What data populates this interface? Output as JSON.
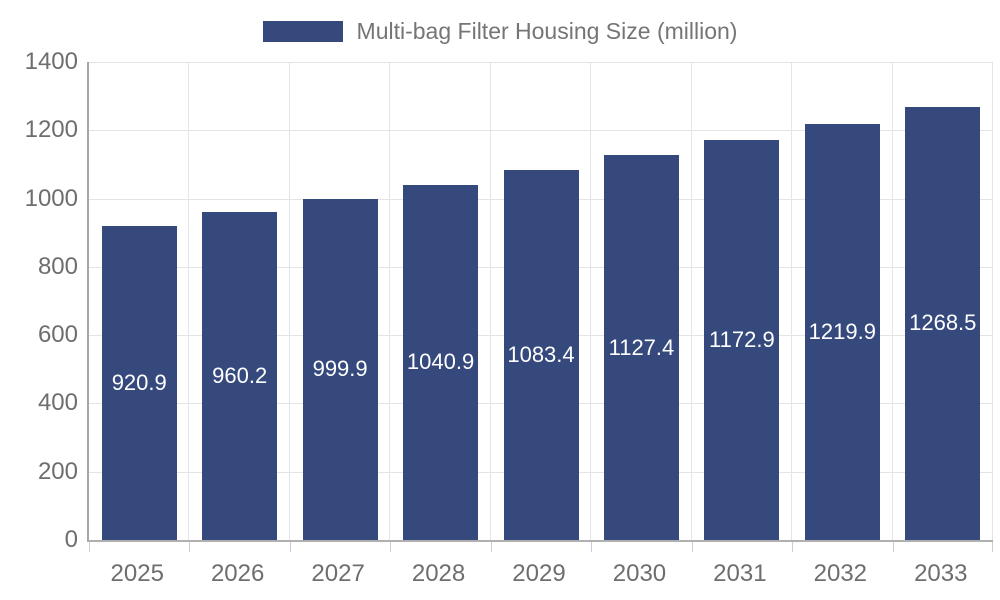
{
  "legend": {
    "label": "Multi-bag Filter Housing Size (million)"
  },
  "chart_data": {
    "type": "bar",
    "title": "Multi-bag Filter Housing Size (million)",
    "categories": [
      "2025",
      "2026",
      "2027",
      "2028",
      "2029",
      "2030",
      "2031",
      "2032",
      "2033"
    ],
    "values": [
      920.9,
      960.2,
      999.9,
      1040.9,
      1083.4,
      1127.4,
      1172.9,
      1219.9,
      1268.5
    ],
    "series": [
      {
        "name": "Multi-bag Filter Housing Size (million)",
        "values": [
          920.9,
          960.2,
          999.9,
          1040.9,
          1083.4,
          1127.4,
          1172.9,
          1219.9,
          1268.5
        ]
      }
    ],
    "xlabel": "",
    "ylabel": "",
    "ylim": [
      0,
      1400
    ],
    "yticks": [
      0,
      200,
      400,
      600,
      800,
      1000,
      1200,
      1400
    ],
    "grid": true,
    "legend_position": "top",
    "value_labels": "centered-inside-bars"
  },
  "colors": {
    "bar": "#35497d",
    "value_label": "#ffffff",
    "legend_text": "#757575",
    "tick_text": "#6e6e6e",
    "gridline": "#e4e4e4",
    "axis_line": "#a6a6a6",
    "background": "#ffffff"
  }
}
